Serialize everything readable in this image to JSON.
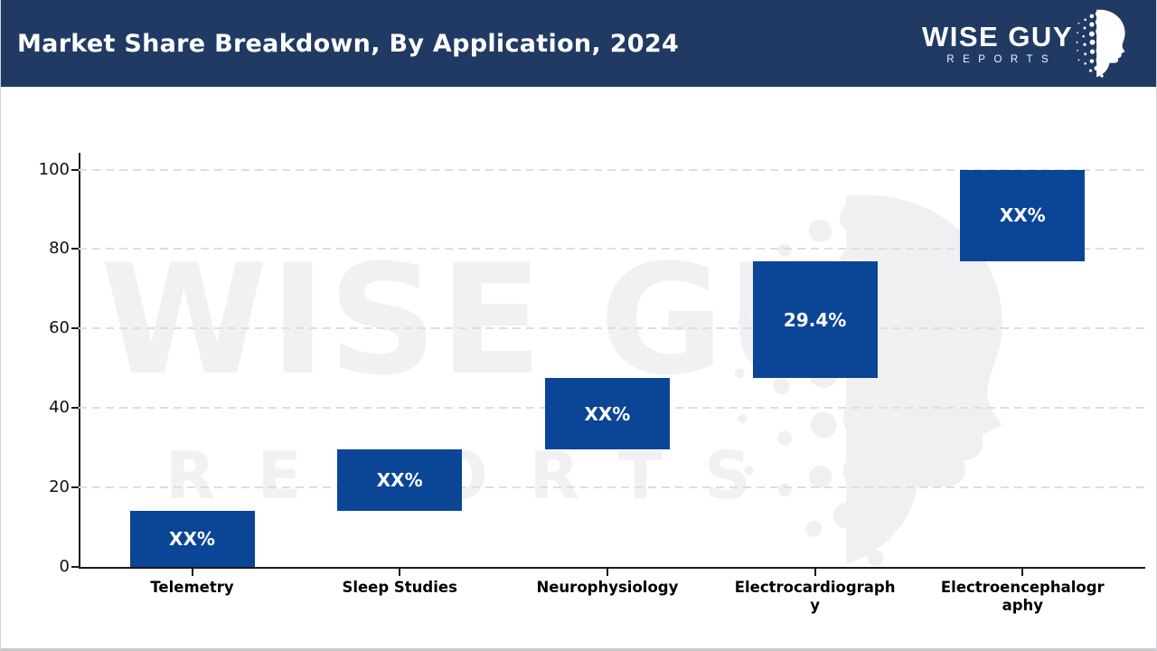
{
  "header": {
    "title": "Market Share Breakdown, By Application, 2024",
    "brand": {
      "name": "WISE GUY",
      "sub": "REPORTS"
    }
  },
  "watermark": {
    "line1": "WISE GUY",
    "line2": "REPORTS"
  },
  "colors": {
    "header_bg": "#203a63",
    "bar": "#0b4596",
    "grid": "#dedee1",
    "axis": "#1a1a1a",
    "watermark": "#f1f1f3",
    "bar_label": "#ffffff"
  },
  "chart_data": {
    "type": "bar",
    "subtype": "waterfall",
    "title": "Market Share Breakdown, By Application, 2024",
    "xlabel": "",
    "ylabel": "",
    "categories": [
      "Telemetry",
      "Sleep Studies",
      "Neurophysiology",
      "Electrocardiography",
      "Electroencephalography"
    ],
    "category_lines": [
      [
        "Telemetry"
      ],
      [
        "Sleep Studies"
      ],
      [
        "Neurophysiology"
      ],
      [
        "Electrocardiograph",
        "y"
      ],
      [
        "Electroencephalogr",
        "aphy"
      ]
    ],
    "starts": [
      0,
      14,
      29.5,
      47.5,
      76.9
    ],
    "values": [
      14,
      15.5,
      18,
      29.4,
      23.1
    ],
    "bar_labels": [
      "XX%",
      "XX%",
      "XX%",
      "29.4%",
      "XX%"
    ],
    "yticks": [
      0,
      20,
      40,
      60,
      80,
      100
    ],
    "ylim": [
      0,
      104
    ],
    "grid": "horizontal-dashed",
    "legend": "none"
  }
}
